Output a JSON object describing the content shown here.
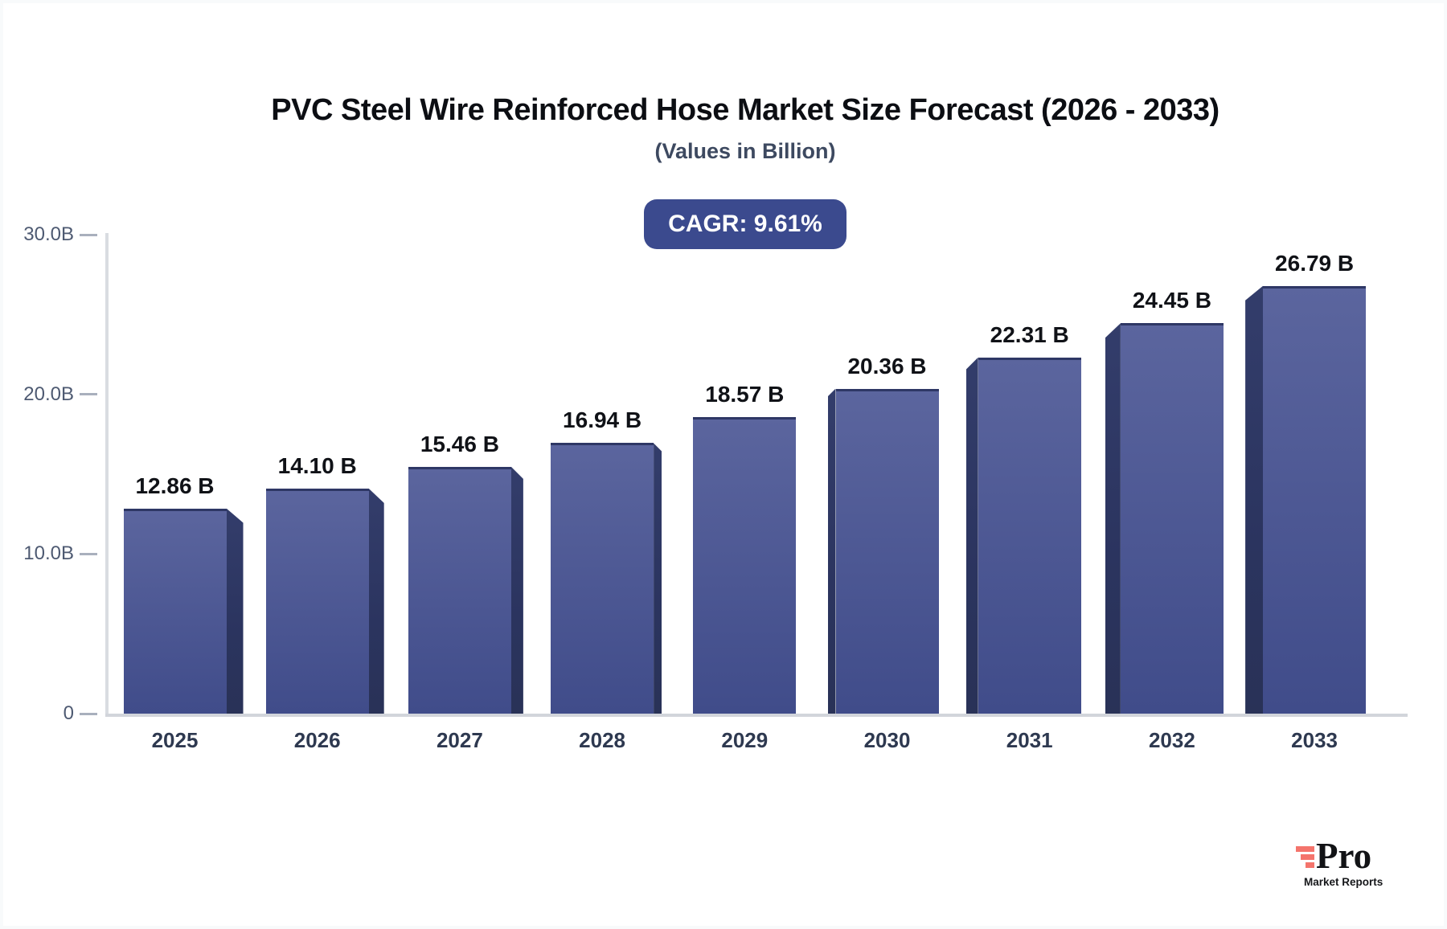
{
  "chart_data": {
    "type": "bar",
    "title": "PVC Steel Wire Reinforced Hose Market Size Forecast (2026 - 2033)",
    "subtitle": "(Values in Billion)",
    "cagr_label": "CAGR: 9.61%",
    "categories": [
      "2025",
      "2026",
      "2027",
      "2028",
      "2029",
      "2030",
      "2031",
      "2032",
      "2033"
    ],
    "values": [
      12.86,
      14.1,
      15.46,
      16.94,
      18.57,
      20.36,
      22.31,
      24.45,
      26.79
    ],
    "value_labels": [
      "12.86 B",
      "14.10 B",
      "15.46 B",
      "16.94 B",
      "18.57 B",
      "20.36 B",
      "22.31 B",
      "24.45 B",
      "26.79 B"
    ],
    "xlabel": "",
    "ylabel": "",
    "ylim": [
      0,
      30
    ],
    "yticks": [
      {
        "value": 0,
        "label": "0"
      },
      {
        "value": 10,
        "label": "10.0B"
      },
      {
        "value": 20,
        "label": "20.0B"
      },
      {
        "value": 30,
        "label": "30.0B"
      }
    ],
    "grid": false,
    "legend": false,
    "colors": {
      "bar_face_top": "#5b659e",
      "bar_face_bottom": "#404c8a",
      "bar_side": "#2b345f",
      "bar_top_border": "#2e3765",
      "badge_bg": "#3b4a8e",
      "badge_text": "#ffffff",
      "axis_line": "#d6d9de",
      "tick_label": "#4e5a72",
      "category_label": "#2e3950",
      "value_label": "#101217",
      "title": "#0c0e13",
      "subtitle": "#3d4960"
    }
  },
  "logo": {
    "name": "Pro",
    "tagline": "Market Reports",
    "accent_color": "#f4746c"
  }
}
